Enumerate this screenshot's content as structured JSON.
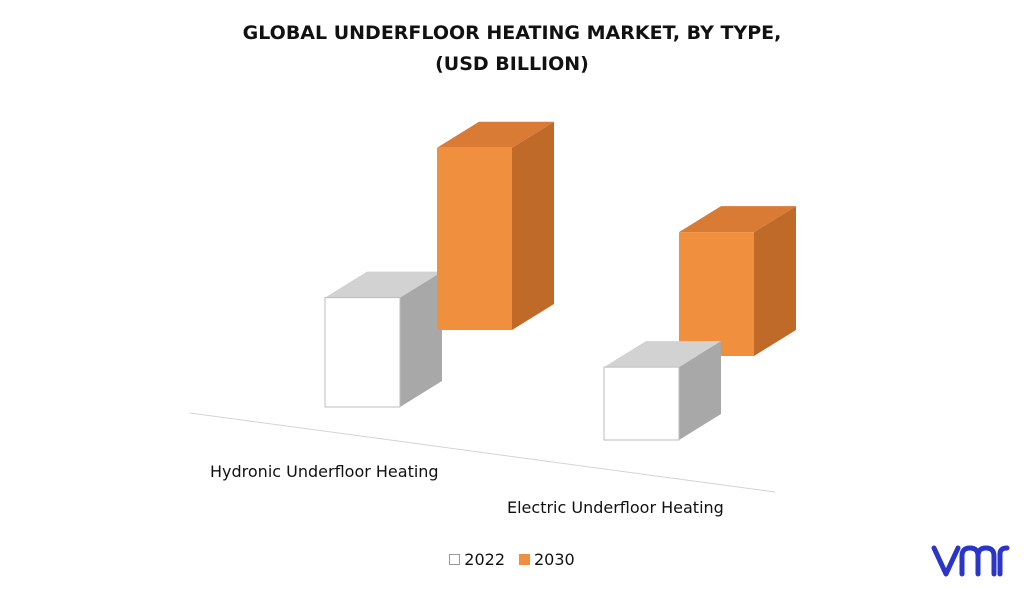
{
  "chart_data": {
    "type": "bar",
    "title_lines": [
      "GLOBAL UNDERFLOOR HEATING MARKET, BY TYPE,",
      "(USD BILLION)"
    ],
    "categories": [
      "Hydronic Underfloor Heating",
      "Electric Underfloor Heating"
    ],
    "series": [
      {
        "name": "2022",
        "values": [
          4.5,
          3.0
        ]
      },
      {
        "name": "2030",
        "values": [
          7.5,
          5.1
        ]
      }
    ],
    "ylim": [
      0,
      8
    ],
    "grid": false,
    "legend_position": "bottom",
    "style": "3d-columns"
  },
  "colors": {
    "series_2022_front": "#ffffff",
    "series_2022_side": "#a8a8a8",
    "series_2022_top": "#d2d2d2",
    "series_2030_front": "#f0903e",
    "series_2030_side": "#bf6a28",
    "series_2030_top": "#d97a35",
    "logo": "#2b35c8"
  },
  "logo_icon": "vmr-logo"
}
